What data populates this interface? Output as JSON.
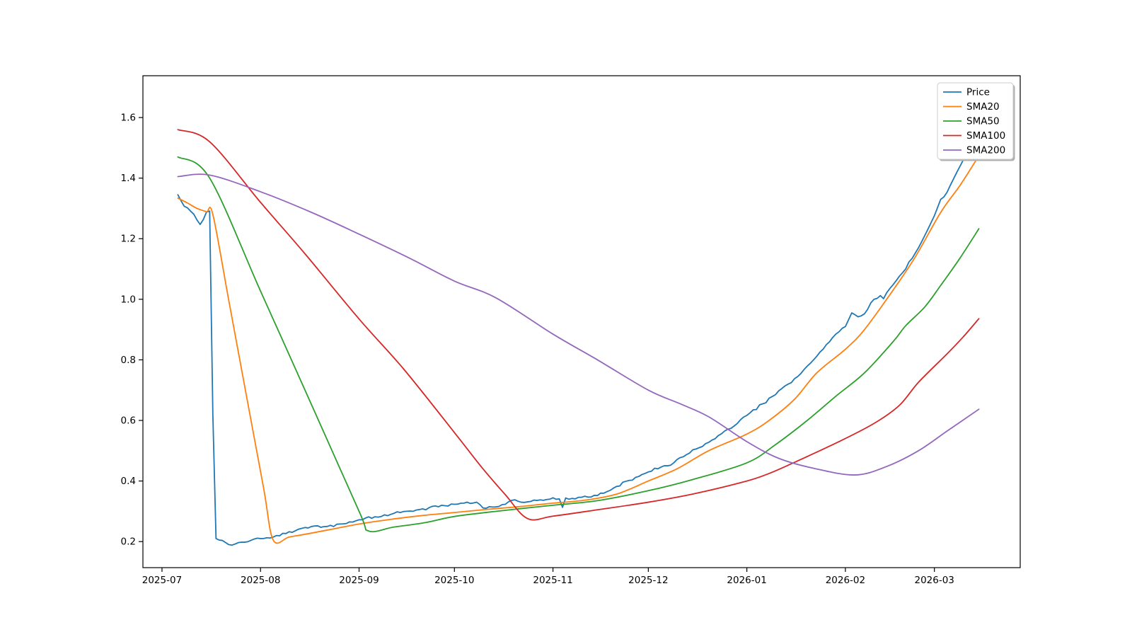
{
  "figure": {
    "background": "#ffffff",
    "axes_border_color": "#000000",
    "tick_color": "#000000",
    "label_color": "#000000"
  },
  "chart_data": {
    "type": "line",
    "title": "",
    "xlabel": "",
    "ylabel": "",
    "grid": false,
    "x_axis": {
      "range": [
        "2025-06-25",
        "2026-03-28"
      ],
      "ticks": [
        {
          "date": "2025-07-01",
          "label": "2025-07"
        },
        {
          "date": "2025-08-01",
          "label": "2025-08"
        },
        {
          "date": "2025-09-01",
          "label": "2025-09"
        },
        {
          "date": "2025-10-01",
          "label": "2025-10"
        },
        {
          "date": "2025-11-01",
          "label": "2025-11"
        },
        {
          "date": "2025-12-01",
          "label": "2025-12"
        },
        {
          "date": "2026-01-01",
          "label": "2026-01"
        },
        {
          "date": "2026-02-01",
          "label": "2026-02"
        },
        {
          "date": "2026-03-01",
          "label": "2026-03"
        }
      ]
    },
    "y_axis": {
      "range": [
        0.114,
        1.738
      ],
      "ticks": [
        0.2,
        0.4,
        0.6,
        0.8,
        1.0,
        1.2,
        1.4,
        1.6
      ],
      "tick_labels": [
        "0.2",
        "0.4",
        "0.6",
        "0.8",
        "1.0",
        "1.2",
        "1.4",
        "1.6"
      ]
    },
    "legend": {
      "position": "upper right",
      "border_color": "#cccccc",
      "background": "#ffffff",
      "shadow_color": "#b0b0b0",
      "entries": [
        "Price",
        "SMA20",
        "SMA50",
        "SMA100",
        "SMA200"
      ]
    },
    "series": [
      {
        "name": "Price",
        "color": "#1f77b4",
        "style": "noisy",
        "points": [
          [
            "2025-07-06",
            1.345
          ],
          [
            "2025-07-07",
            1.325
          ],
          [
            "2025-07-08",
            1.307
          ],
          [
            "2025-07-09",
            1.302
          ],
          [
            "2025-07-10",
            1.291
          ],
          [
            "2025-07-11",
            1.281
          ],
          [
            "2025-07-12",
            1.262
          ],
          [
            "2025-07-13",
            1.247
          ],
          [
            "2025-07-14",
            1.263
          ],
          [
            "2025-07-15",
            1.288
          ],
          [
            "2025-07-16",
            1.291
          ],
          [
            "2025-07-17",
            0.62
          ],
          [
            "2025-07-18",
            0.21
          ],
          [
            "2025-07-19",
            0.205
          ],
          [
            "2025-07-21",
            0.197
          ],
          [
            "2025-07-22",
            0.19
          ],
          [
            "2025-07-24",
            0.192
          ],
          [
            "2025-07-27",
            0.198
          ],
          [
            "2025-08-01",
            0.21
          ],
          [
            "2025-08-06",
            0.22
          ],
          [
            "2025-08-12",
            0.236
          ],
          [
            "2025-08-16",
            0.245
          ],
          [
            "2025-08-19",
            0.252
          ],
          [
            "2025-08-22",
            0.25
          ],
          [
            "2025-08-26",
            0.258
          ],
          [
            "2025-09-01",
            0.272
          ],
          [
            "2025-09-06",
            0.282
          ],
          [
            "2025-09-11",
            0.29
          ],
          [
            "2025-09-16",
            0.3
          ],
          [
            "2025-09-21",
            0.308
          ],
          [
            "2025-09-26",
            0.315
          ],
          [
            "2025-09-30",
            0.324
          ],
          [
            "2025-10-04",
            0.327
          ],
          [
            "2025-10-08",
            0.33
          ],
          [
            "2025-10-10",
            0.311
          ],
          [
            "2025-10-13",
            0.314
          ],
          [
            "2025-10-16",
            0.322
          ],
          [
            "2025-10-19",
            0.336
          ],
          [
            "2025-10-22",
            0.33
          ],
          [
            "2025-10-26",
            0.337
          ],
          [
            "2025-10-31",
            0.34
          ],
          [
            "2025-11-03",
            0.341
          ],
          [
            "2025-11-04",
            0.313
          ],
          [
            "2025-11-05",
            0.344
          ],
          [
            "2025-11-08",
            0.341
          ],
          [
            "2025-11-12",
            0.347
          ],
          [
            "2025-11-15",
            0.352
          ],
          [
            "2025-11-18",
            0.365
          ],
          [
            "2025-11-21",
            0.382
          ],
          [
            "2025-11-25",
            0.402
          ],
          [
            "2025-11-28",
            0.415
          ],
          [
            "2025-12-01",
            0.43
          ],
          [
            "2025-12-05",
            0.446
          ],
          [
            "2025-12-09",
            0.46
          ],
          [
            "2025-12-13",
            0.487
          ],
          [
            "2025-12-17",
            0.51
          ],
          [
            "2025-12-21",
            0.535
          ],
          [
            "2025-12-25",
            0.565
          ],
          [
            "2025-12-29",
            0.59
          ],
          [
            "2026-01-02",
            0.625
          ],
          [
            "2026-01-06",
            0.655
          ],
          [
            "2026-01-10",
            0.685
          ],
          [
            "2026-01-14",
            0.72
          ],
          [
            "2026-01-18",
            0.755
          ],
          [
            "2026-01-22",
            0.8
          ],
          [
            "2026-01-26",
            0.85
          ],
          [
            "2026-01-29",
            0.885
          ],
          [
            "2026-02-01",
            0.91
          ],
          [
            "2026-02-03",
            0.955
          ],
          [
            "2026-02-05",
            0.942
          ],
          [
            "2026-02-07",
            0.952
          ],
          [
            "2026-02-10",
            1.0
          ],
          [
            "2026-02-12",
            1.012
          ],
          [
            "2026-02-13",
            1.002
          ],
          [
            "2026-02-16",
            1.048
          ],
          [
            "2026-02-19",
            1.088
          ],
          [
            "2026-02-22",
            1.135
          ],
          [
            "2026-02-25",
            1.19
          ],
          [
            "2026-02-27",
            1.232
          ],
          [
            "2026-03-01",
            1.276
          ],
          [
            "2026-03-03",
            1.33
          ],
          [
            "2026-03-04",
            1.338
          ],
          [
            "2026-03-06",
            1.376
          ],
          [
            "2026-03-08",
            1.418
          ],
          [
            "2026-03-10",
            1.458
          ],
          [
            "2026-03-12",
            1.498
          ],
          [
            "2026-03-14",
            1.53
          ]
        ]
      },
      {
        "name": "SMA20",
        "color": "#ff7f0e",
        "style": "smooth",
        "points": [
          [
            "2025-07-06",
            1.334
          ],
          [
            "2025-07-09",
            1.318
          ],
          [
            "2025-07-12",
            1.3
          ],
          [
            "2025-07-15",
            1.289
          ],
          [
            "2025-07-17",
            1.28
          ],
          [
            "2025-07-22",
            0.997
          ],
          [
            "2025-07-28",
            0.657
          ],
          [
            "2025-08-02",
            0.375
          ],
          [
            "2025-08-05",
            0.205
          ],
          [
            "2025-08-10",
            0.215
          ],
          [
            "2025-08-16",
            0.226
          ],
          [
            "2025-08-24",
            0.242
          ],
          [
            "2025-09-01",
            0.258
          ],
          [
            "2025-09-10",
            0.272
          ],
          [
            "2025-09-20",
            0.285
          ],
          [
            "2025-10-01",
            0.296
          ],
          [
            "2025-10-12",
            0.307
          ],
          [
            "2025-10-22",
            0.316
          ],
          [
            "2025-11-01",
            0.327
          ],
          [
            "2025-11-08",
            0.333
          ],
          [
            "2025-11-15",
            0.343
          ],
          [
            "2025-11-22",
            0.36
          ],
          [
            "2025-12-01",
            0.4
          ],
          [
            "2025-12-10",
            0.44
          ],
          [
            "2025-12-20",
            0.5
          ],
          [
            "2026-01-01",
            0.555
          ],
          [
            "2026-01-08",
            0.6
          ],
          [
            "2026-01-16",
            0.67
          ],
          [
            "2026-01-23",
            0.757
          ],
          [
            "2026-02-01",
            0.835
          ],
          [
            "2026-02-07",
            0.9
          ],
          [
            "2026-02-16",
            1.03
          ],
          [
            "2026-02-23",
            1.14
          ],
          [
            "2026-03-03",
            1.287
          ],
          [
            "2026-03-09",
            1.375
          ],
          [
            "2026-03-14",
            1.457
          ]
        ]
      },
      {
        "name": "SMA50",
        "color": "#2ca02c",
        "style": "smooth",
        "points": [
          [
            "2025-07-06",
            1.47
          ],
          [
            "2025-07-16",
            1.4
          ],
          [
            "2025-08-01",
            1.027
          ],
          [
            "2025-08-15",
            0.7
          ],
          [
            "2025-09-01",
            0.3
          ],
          [
            "2025-09-04",
            0.235
          ],
          [
            "2025-09-12",
            0.248
          ],
          [
            "2025-09-22",
            0.263
          ],
          [
            "2025-10-01",
            0.283
          ],
          [
            "2025-10-15",
            0.301
          ],
          [
            "2025-11-01",
            0.32
          ],
          [
            "2025-11-15",
            0.335
          ],
          [
            "2025-12-01",
            0.368
          ],
          [
            "2025-12-15",
            0.405
          ],
          [
            "2026-01-01",
            0.46
          ],
          [
            "2026-01-10",
            0.52
          ],
          [
            "2026-01-20",
            0.6
          ],
          [
            "2026-01-29",
            0.68
          ],
          [
            "2026-02-07",
            0.757
          ],
          [
            "2026-02-16",
            0.86
          ],
          [
            "2026-02-20",
            0.913
          ],
          [
            "2026-02-26",
            0.975
          ],
          [
            "2026-03-03",
            1.046
          ],
          [
            "2026-03-09",
            1.135
          ],
          [
            "2026-03-15",
            1.233
          ]
        ]
      },
      {
        "name": "SMA100",
        "color": "#d62728",
        "style": "smooth",
        "points": [
          [
            "2025-07-06",
            1.56
          ],
          [
            "2025-07-16",
            1.52
          ],
          [
            "2025-08-01",
            1.32
          ],
          [
            "2025-08-15",
            1.15
          ],
          [
            "2025-09-01",
            0.935
          ],
          [
            "2025-09-15",
            0.77
          ],
          [
            "2025-10-01",
            0.56
          ],
          [
            "2025-10-10",
            0.44
          ],
          [
            "2025-10-17",
            0.355
          ],
          [
            "2025-10-24",
            0.276
          ],
          [
            "2025-11-01",
            0.284
          ],
          [
            "2025-11-15",
            0.305
          ],
          [
            "2025-12-01",
            0.33
          ],
          [
            "2025-12-15",
            0.357
          ],
          [
            "2026-01-01",
            0.4
          ],
          [
            "2026-01-08",
            0.425
          ],
          [
            "2026-01-15",
            0.457
          ],
          [
            "2026-01-30",
            0.53
          ],
          [
            "2026-02-10",
            0.59
          ],
          [
            "2026-02-18",
            0.65
          ],
          [
            "2026-02-24",
            0.726
          ],
          [
            "2026-03-05",
            0.82
          ],
          [
            "2026-03-10",
            0.875
          ],
          [
            "2026-03-15",
            0.936
          ]
        ]
      },
      {
        "name": "SMA200",
        "color": "#9467bd",
        "style": "smooth",
        "points": [
          [
            "2025-07-06",
            1.405
          ],
          [
            "2025-07-16",
            1.41
          ],
          [
            "2025-08-01",
            1.355
          ],
          [
            "2025-08-17",
            1.287
          ],
          [
            "2025-09-01",
            1.215
          ],
          [
            "2025-09-17",
            1.135
          ],
          [
            "2025-10-01",
            1.06
          ],
          [
            "2025-10-14",
            1.005
          ],
          [
            "2025-11-01",
            0.885
          ],
          [
            "2025-11-15",
            0.8
          ],
          [
            "2025-12-01",
            0.7
          ],
          [
            "2025-12-11",
            0.655
          ],
          [
            "2025-12-20",
            0.612
          ],
          [
            "2026-01-01",
            0.53
          ],
          [
            "2026-01-11",
            0.475
          ],
          [
            "2026-01-22",
            0.442
          ],
          [
            "2026-02-04",
            0.42
          ],
          [
            "2026-02-14",
            0.448
          ],
          [
            "2026-02-24",
            0.5
          ],
          [
            "2026-03-05",
            0.565
          ],
          [
            "2026-03-15",
            0.637
          ]
        ]
      }
    ]
  }
}
